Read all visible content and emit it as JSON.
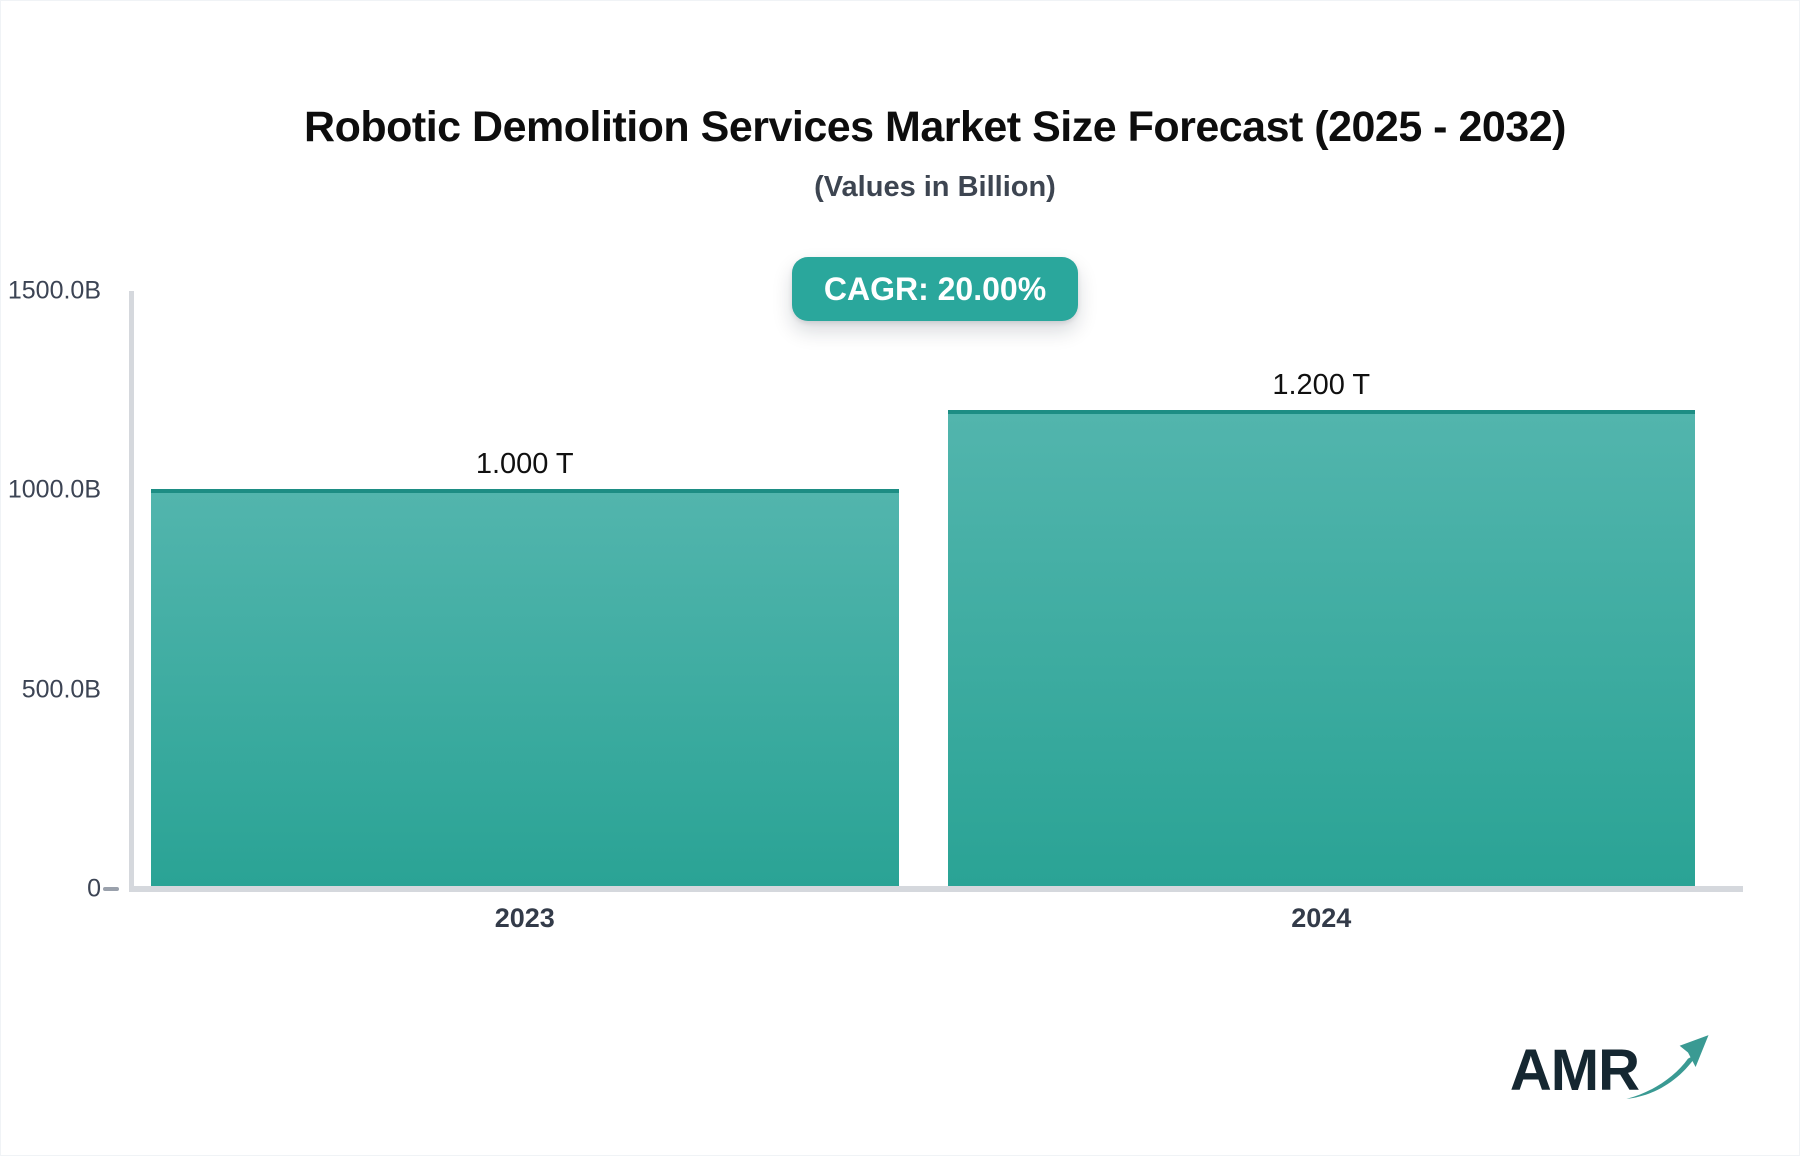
{
  "header": {
    "title": "Robotic Demolition Services Market Size Forecast (2025 - 2032)",
    "subtitle": "(Values in Billion)",
    "cagr_label": "CAGR: 20.00%"
  },
  "chart_data": {
    "type": "bar",
    "title": "Robotic Demolition Services Market Size Forecast (2025 - 2032)",
    "subtitle": "(Values in Billion)",
    "cagr_percent": 20.0,
    "categories": [
      "2023",
      "2024"
    ],
    "values": [
      1000,
      1200
    ],
    "value_labels": [
      "1.000 T",
      "1.200 T"
    ],
    "unit": "Billion",
    "ylim": [
      0,
      1500
    ],
    "yticks": [
      {
        "value": 0,
        "label": "0",
        "dash": true
      },
      {
        "value": 500,
        "label": "500.0B",
        "dash": false
      },
      {
        "value": 1000,
        "label": "1000.0B",
        "dash": false
      },
      {
        "value": 1500,
        "label": "1500.0B",
        "dash": false
      }
    ],
    "grid": false,
    "legend": false
  },
  "logo": {
    "text": "AMR"
  },
  "colors": {
    "title": "#0d0d0d",
    "subtitle": "#3d4551",
    "badge_bg": "#2aa79c",
    "badge_text": "#ffffff",
    "bar_gradient_top": "#52b5ad",
    "bar_gradient_bottom": "#2aa395",
    "bar_top_border": "#1d8d84",
    "axis_line": "#d5d8dd",
    "tick_label": "#3c4454",
    "category_label": "#333b49",
    "value_label": "#101010",
    "logo_text": "#152731",
    "logo_arrow": "#3a9a93"
  }
}
